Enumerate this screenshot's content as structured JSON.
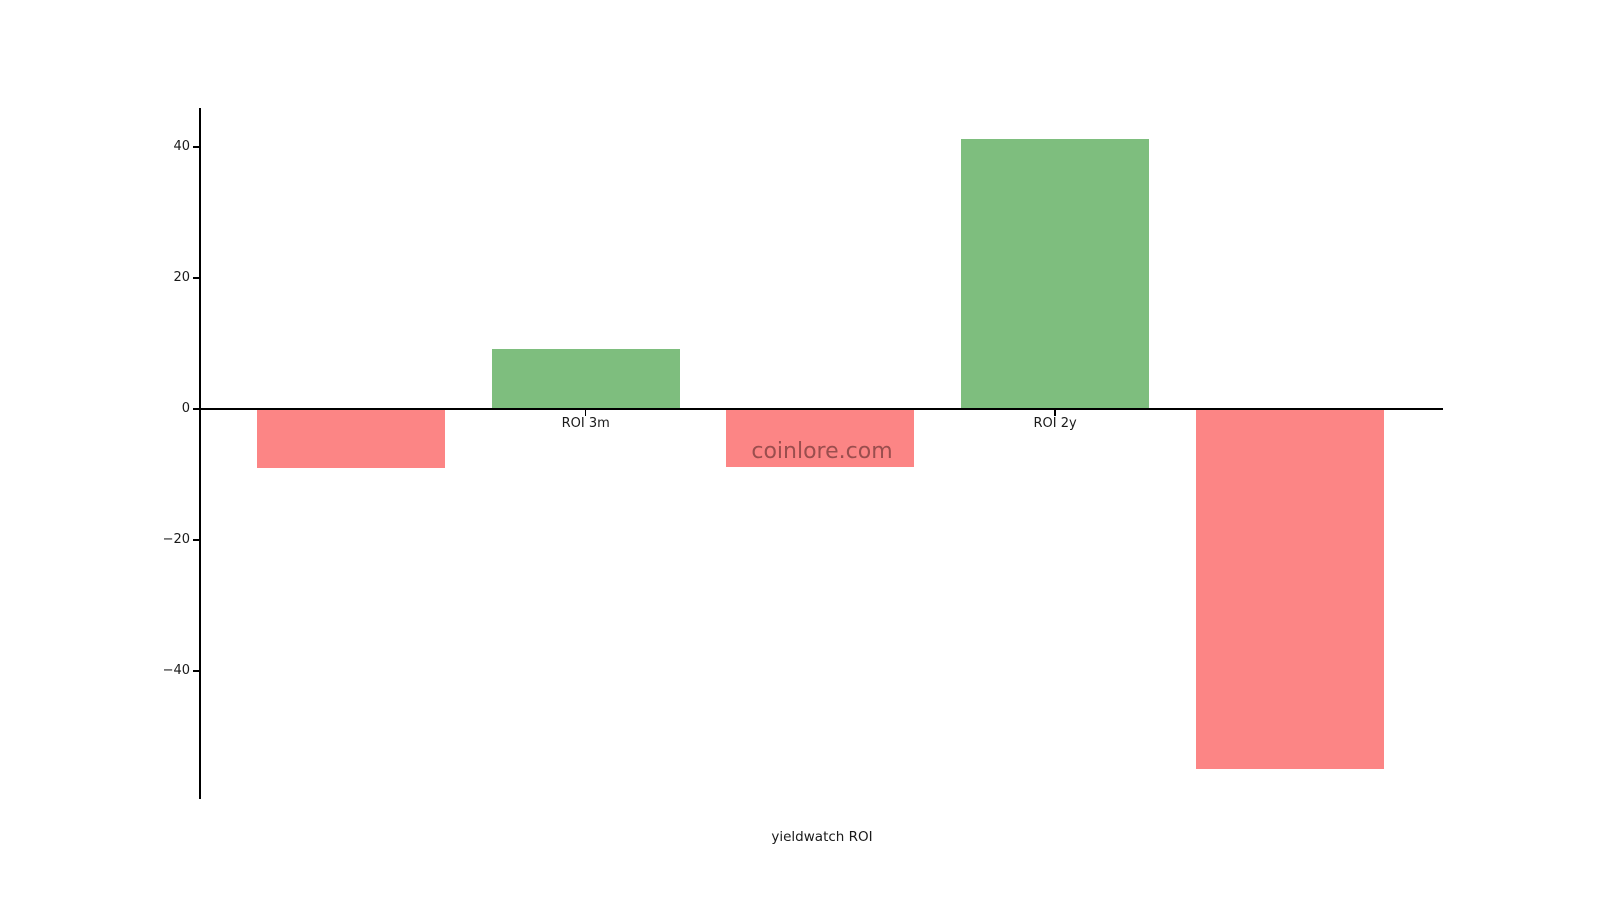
{
  "watermark": {
    "text": "coinlore.com",
    "color": "#9a4e4e"
  },
  "chart_data": {
    "type": "bar",
    "title": "",
    "xlabel": "yieldwatch ROI",
    "ylabel": "",
    "categories": [
      "",
      "ROI 3m",
      "",
      "ROI 2y",
      ""
    ],
    "values": [
      -8.9,
      9.2,
      -8.7,
      41.2,
      -54.8
    ],
    "visible_x_tick_labels": [
      "ROI 3m",
      "ROI 2y"
    ],
    "yticks": [
      {
        "value": 40,
        "label": "40"
      },
      {
        "value": 20,
        "label": "20"
      },
      {
        "value": 0,
        "label": "0"
      },
      {
        "value": -20,
        "label": "−20"
      },
      {
        "value": -40,
        "label": "−40"
      }
    ],
    "ylim": [
      -59.5,
      46
    ],
    "grid": false,
    "legend": "none",
    "bar_colors": {
      "positive": "#7ebe7e",
      "negative": "#fc8585"
    },
    "axis_color": "#000000",
    "text_color": "#1a1a1a"
  }
}
